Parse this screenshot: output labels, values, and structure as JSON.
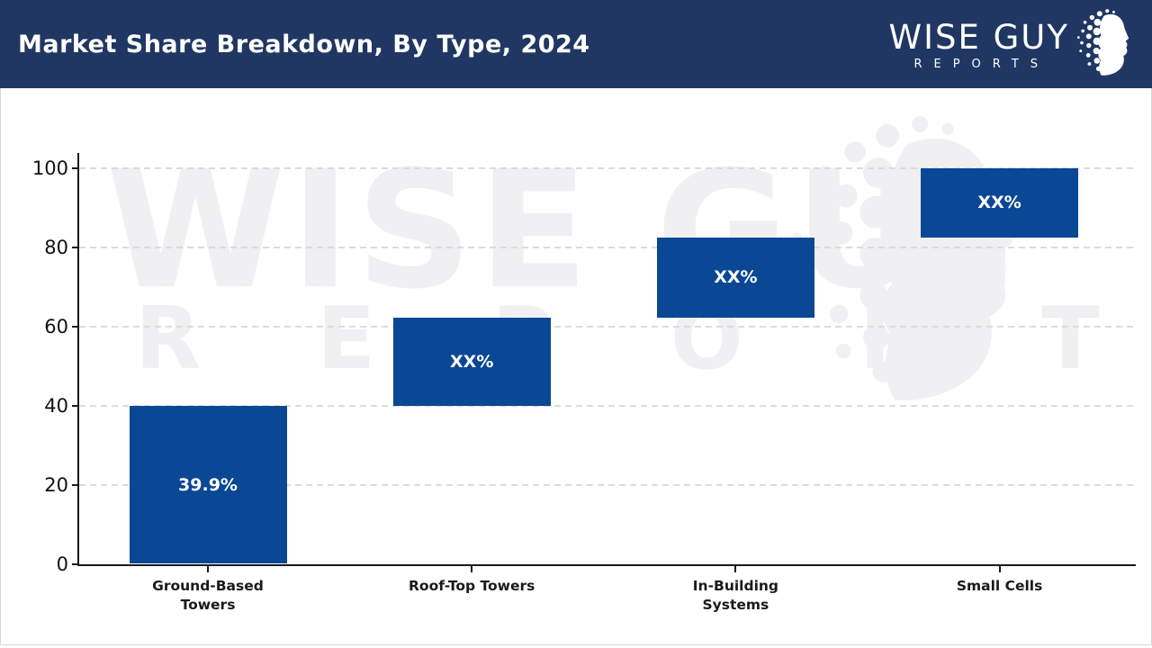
{
  "header": {
    "title": "Market Share Breakdown, By Type, 2024",
    "logo": {
      "line1": "WISE GUY",
      "line2": "REPORTS"
    }
  },
  "watermark": {
    "line1": "WISE GUY",
    "line2": "R E P O R T S"
  },
  "colors": {
    "header_bg": "#203763",
    "bar_fill": "#0a4795",
    "bar_label": "#ffffff",
    "gridline": "#dcdcdc",
    "axis": "#1a1a1a",
    "watermark": "#f0f0f2"
  },
  "chart_data": {
    "type": "bar",
    "subtype": "waterfall",
    "title": "Market Share Breakdown, By Type, 2024",
    "xlabel": "",
    "ylabel": "",
    "ylim": [
      0,
      100
    ],
    "yticks": [
      0,
      20,
      40,
      60,
      80,
      100
    ],
    "grid": "horizontal-dashed",
    "legend": "none",
    "categories": [
      "Ground-Based Towers",
      "Roof-Top Towers",
      "In-Building Systems",
      "Small Cells"
    ],
    "bars": [
      {
        "category_display": "Ground-Based\nTowers",
        "start": 0,
        "end": 39.9,
        "value_label": "39.9%"
      },
      {
        "category_display": "Roof-Top Towers",
        "start": 39.9,
        "end": 62.3,
        "value_label": "XX%"
      },
      {
        "category_display": "In-Building\nSystems",
        "start": 62.3,
        "end": 82.5,
        "value_label": "XX%"
      },
      {
        "category_display": "Small Cells",
        "start": 82.5,
        "end": 100,
        "value_label": "XX%"
      }
    ]
  }
}
